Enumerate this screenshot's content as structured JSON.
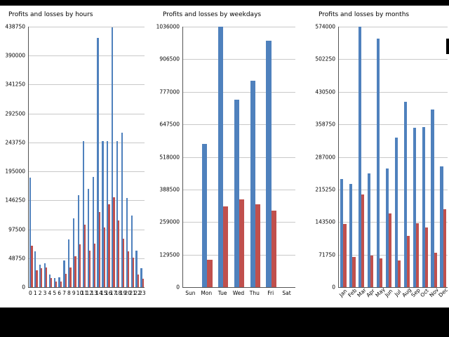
{
  "window": {
    "background": "#000000",
    "canvas_background": "#ffffff"
  },
  "colors": {
    "profit": "#4F81BD",
    "loss": "#C0504D",
    "gridline": "#c9c9c9",
    "axis": "#555555"
  },
  "chart_data": [
    {
      "type": "bar",
      "title": "Profits and losses by hours",
      "categories": [
        "0",
        "1",
        "2",
        "3",
        "4",
        "5",
        "6",
        "7",
        "8",
        "9",
        "10",
        "11",
        "12",
        "13",
        "14",
        "15",
        "16",
        "17",
        "18",
        "19",
        "20",
        "21",
        "22",
        "23"
      ],
      "series": [
        {
          "name": "profits",
          "color_key": "profit",
          "values": [
            185000,
            60000,
            38000,
            40000,
            21000,
            15000,
            16000,
            45000,
            80000,
            116000,
            155000,
            246000,
            166000,
            186000,
            420000,
            246000,
            246000,
            438000,
            246000,
            260000,
            150000,
            121000,
            62000,
            32000
          ]
        },
        {
          "name": "losses",
          "color_key": "loss",
          "values": [
            70000,
            28000,
            32000,
            33000,
            15000,
            9000,
            10000,
            22000,
            33000,
            52000,
            72000,
            105000,
            62000,
            73000,
            126000,
            101000,
            140000,
            151000,
            112000,
            82000,
            60000,
            50000,
            21000,
            14000
          ]
        }
      ],
      "ylim": [
        0,
        438750
      ],
      "yticks": [
        0,
        48750,
        97500,
        146250,
        195000,
        243750,
        292500,
        341250,
        390000,
        438750
      ],
      "grid": true,
      "legend": "none",
      "xlabel_rotation": 0
    },
    {
      "type": "bar",
      "title": "Profits and losses by weekdays",
      "categories": [
        "Sun",
        "Mon",
        "Tue",
        "Wed",
        "Thu",
        "Fri",
        "Sat"
      ],
      "series": [
        {
          "name": "profits",
          "color_key": "profit",
          "values": [
            0,
            570000,
            1036000,
            745000,
            820000,
            980000,
            0
          ]
        },
        {
          "name": "losses",
          "color_key": "loss",
          "values": [
            0,
            110000,
            320000,
            348000,
            330000,
            305000,
            0
          ]
        }
      ],
      "ylim": [
        0,
        1036000
      ],
      "yticks": [
        0,
        129500,
        259000,
        388500,
        518000,
        647500,
        777000,
        906500,
        1036000
      ],
      "grid": true,
      "legend": "none",
      "xlabel_rotation": 0
    },
    {
      "type": "bar",
      "title": "Profits and losses by months",
      "categories": [
        "Jan",
        "Feb",
        "Mar",
        "Apr",
        "May",
        "Jun",
        "Jul",
        "Aug",
        "Sep",
        "Oct",
        "Nov",
        "Dec"
      ],
      "series": [
        {
          "name": "profits",
          "color_key": "profit",
          "values": [
            239000,
            228000,
            574000,
            251000,
            548000,
            262000,
            330000,
            408000,
            351000,
            353000,
            391000,
            266000
          ]
        },
        {
          "name": "losses",
          "color_key": "loss",
          "values": [
            139000,
            66000,
            205000,
            70000,
            64000,
            163000,
            59000,
            113000,
            141000,
            131000,
            76000,
            171000
          ]
        }
      ],
      "ylim": [
        0,
        574000
      ],
      "yticks": [
        0,
        71750,
        143500,
        215250,
        287000,
        358750,
        430500,
        502250,
        574000
      ],
      "grid": true,
      "legend": "none",
      "xlabel_rotation": 45
    }
  ]
}
